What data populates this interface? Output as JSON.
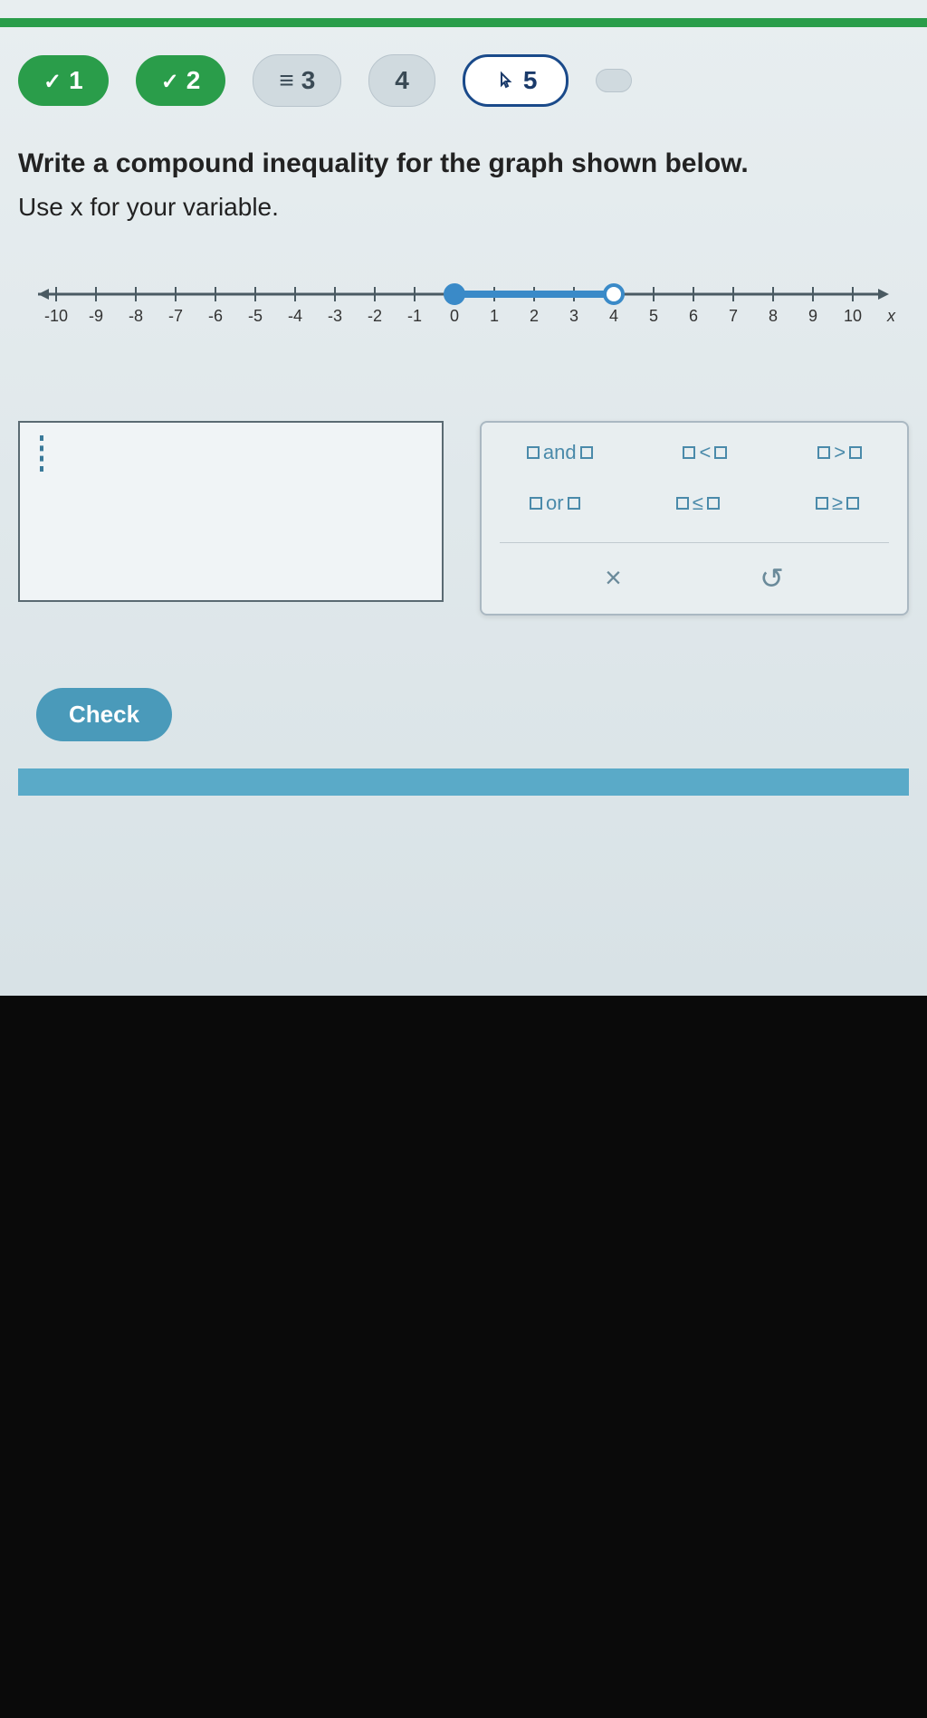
{
  "nav": {
    "pills": [
      {
        "label": "1",
        "state": "done"
      },
      {
        "label": "2",
        "state": "done"
      },
      {
        "label": "3",
        "state": "gray",
        "prefix": "≡"
      },
      {
        "label": "4",
        "state": "gray"
      },
      {
        "label": "5",
        "state": "current",
        "cursor": true
      }
    ]
  },
  "question": {
    "line1": "Write a compound inequality for the graph shown below.",
    "line2": "Use x for your variable."
  },
  "numberline": {
    "min": -10,
    "max": 10,
    "ticks": [
      -10,
      -9,
      -8,
      -7,
      -6,
      -5,
      -4,
      -3,
      -2,
      -1,
      0,
      1,
      2,
      3,
      4,
      5,
      6,
      7,
      8,
      9,
      10
    ],
    "axis_label": "x",
    "segment": {
      "from": 0,
      "to": 4
    },
    "left_point": {
      "value": 0,
      "closed": true
    },
    "right_point": {
      "value": 4,
      "closed": false
    },
    "line_color": "#3a8ac8",
    "axis_color": "#4a5a62",
    "tick_font_size": 18
  },
  "keypad": {
    "row1": [
      {
        "id": "and",
        "text": "and"
      },
      {
        "id": "lt",
        "text": "<"
      },
      {
        "id": "gt",
        "text": ">"
      }
    ],
    "row2": [
      {
        "id": "or",
        "text": "or"
      },
      {
        "id": "le",
        "text": "≤"
      },
      {
        "id": "ge",
        "text": "≥"
      }
    ],
    "clear": "×",
    "reset": "↺"
  },
  "buttons": {
    "check": "Check"
  },
  "colors": {
    "pill_done_bg": "#2a9d4a",
    "pill_gray_bg": "#d0dadf",
    "pill_current_border": "#1a4a8a",
    "segment": "#3a8ac8",
    "keypad_text": "#4a8aaa",
    "check_bg": "#4a9aba"
  }
}
